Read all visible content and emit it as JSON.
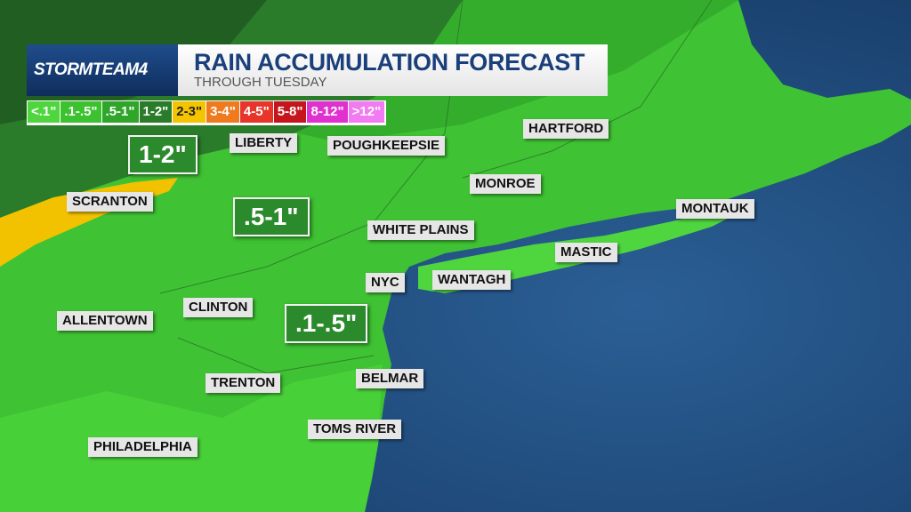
{
  "header": {
    "brand": "STORMTEAM4",
    "title": "RAIN ACCUMULATION FORECAST",
    "subtitle": "THROUGH TUESDAY"
  },
  "legend": [
    {
      "label": "<.1\"",
      "color": "#4fd63f",
      "text_color": "#ffffff"
    },
    {
      "label": ".1-.5\"",
      "color": "#3cc12f",
      "text_color": "#ffffff"
    },
    {
      "label": ".5-1\"",
      "color": "#2fa52a",
      "text_color": "#ffffff"
    },
    {
      "label": "1-2\"",
      "color": "#2a7c2a",
      "text_color": "#ffffff"
    },
    {
      "label": "2-3\"",
      "color": "#f5c400",
      "text_color": "#222222"
    },
    {
      "label": "3-4\"",
      "color": "#f07a1e",
      "text_color": "#ffffff"
    },
    {
      "label": "4-5\"",
      "color": "#e8352a",
      "text_color": "#ffffff"
    },
    {
      "label": "5-8\"",
      "color": "#c4161c",
      "text_color": "#ffffff"
    },
    {
      "label": "8-12\"",
      "color": "#e030d0",
      "text_color": "#ffffff"
    },
    {
      "label": ">12\"",
      "color": "#f27af2",
      "text_color": "#ffffff"
    }
  ],
  "zones": [
    "1-2\"",
    ".5-1\"",
    ".1-.5\""
  ],
  "cities": [
    "LIBERTY",
    "POUGHKEEPSIE",
    "HARTFORD",
    "SCRANTON",
    "MONROE",
    "MONTAUK",
    "WHITE PLAINS",
    "MASTIC",
    "NYC",
    "WANTAGH",
    "ALLENTOWN",
    "CLINTON",
    "BELMAR",
    "TRENTON",
    "TOMS RIVER",
    "PHILADELPHIA"
  ]
}
